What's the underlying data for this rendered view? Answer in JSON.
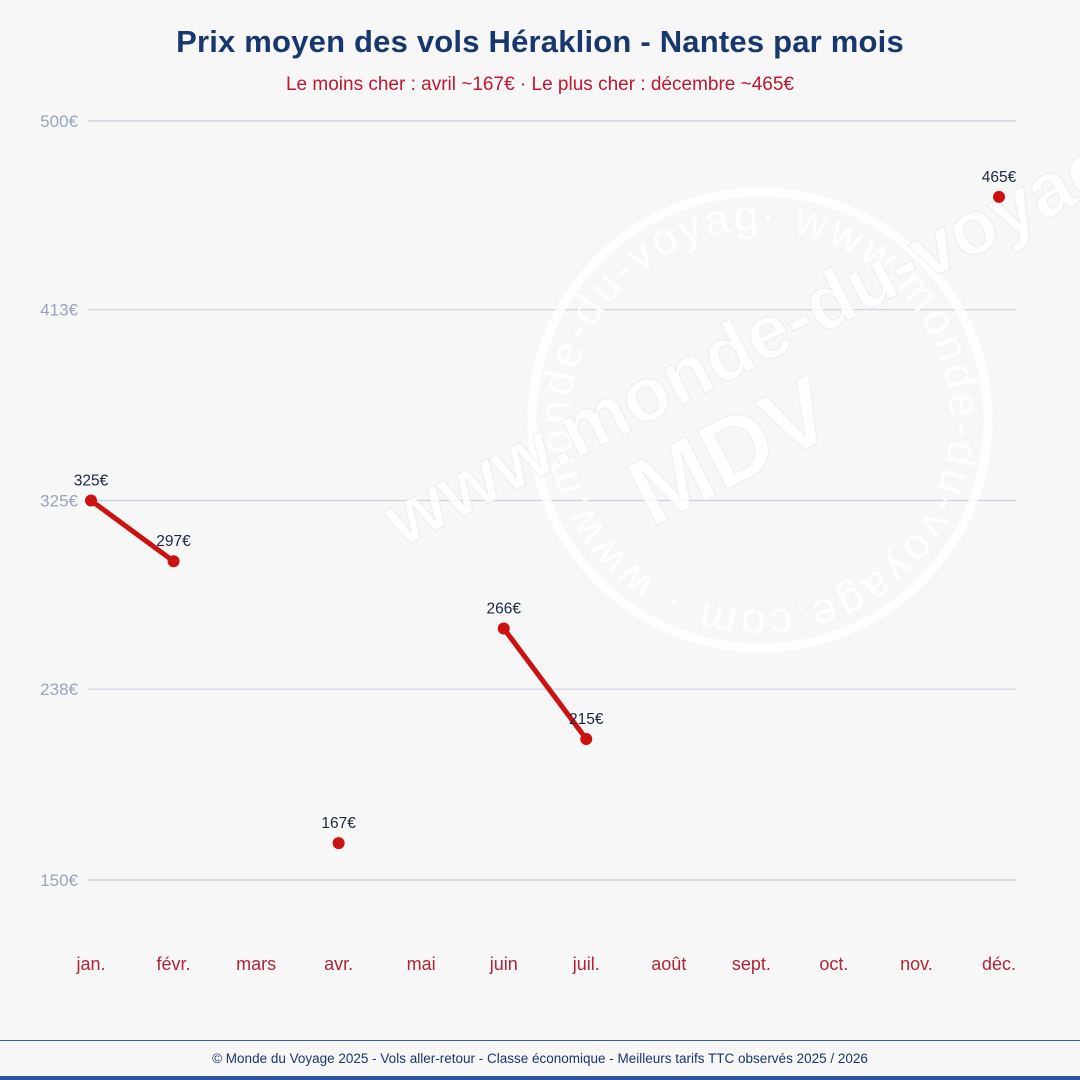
{
  "title": "Prix moyen des vols Héraklion - Nantes par mois",
  "subtitle": "Le moins cher : avril ~167€ · Le plus cher : décembre ~465€",
  "footer": "© Monde du Voyage 2025 - Vols aller-retour - Classe économique - Meilleurs tarifs TTC observés 2025 / 2026",
  "watermark": {
    "text": "www.monde-du-voyage",
    "suffix": ".com",
    "badge": "MDV"
  },
  "colors": {
    "background": "#f7f7f8",
    "title": "#17376e",
    "subtitle_red": "#c01731",
    "series": "#cc1111",
    "point_label": "#1c2740",
    "axis_text": "#97a5ba",
    "month_label": "#b02438",
    "grid": "#c8d0dd",
    "footer_rule": "#2f5ea8",
    "bottom_bar": "#2a5599"
  },
  "chart_data": {
    "type": "line",
    "title": "Prix moyen des vols Héraklion - Nantes par mois",
    "categories": [
      "jan.",
      "févr.",
      "mars",
      "avr.",
      "mai",
      "juin",
      "juil.",
      "août",
      "sept.",
      "oct.",
      "nov.",
      "déc."
    ],
    "values": [
      325,
      297,
      null,
      167,
      null,
      266,
      215,
      null,
      null,
      null,
      null,
      465
    ],
    "unit": "€",
    "ylim": [
      150,
      500
    ],
    "yticks": [
      150,
      238,
      325,
      413,
      500
    ],
    "grid": true,
    "legend": false
  }
}
